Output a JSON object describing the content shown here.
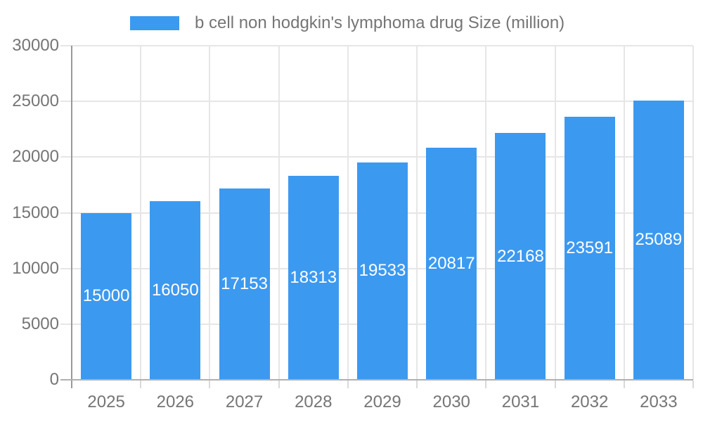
{
  "legend": {
    "label": "b cell non hodgkin's lymphoma drug Size (million)"
  },
  "chart_data": {
    "type": "bar",
    "title": "",
    "xlabel": "",
    "ylabel": "",
    "categories": [
      "2025",
      "2026",
      "2027",
      "2028",
      "2029",
      "2030",
      "2031",
      "2032",
      "2033"
    ],
    "series": [
      {
        "name": "b cell non hodgkin's lymphoma drug Size (million)",
        "values": [
          15000,
          16050,
          17153,
          18313,
          19533,
          20817,
          22168,
          23591,
          25089
        ]
      }
    ],
    "ylim": [
      0,
      30000
    ],
    "yticks": [
      0,
      5000,
      10000,
      15000,
      20000,
      25000,
      30000
    ],
    "grid": true,
    "legend_position": "top",
    "value_labels_inside_bars": true,
    "colors": {
      "bar": "#3C99F0",
      "value_label": "#FFFFFF",
      "axis_text": "#757575",
      "gridline": "#E6E6E6",
      "x_tick": "#D9D9D9",
      "y_axis_line": "#999999",
      "x_axis_line": "#B0B0B0",
      "background": "#FFFFFF"
    }
  }
}
